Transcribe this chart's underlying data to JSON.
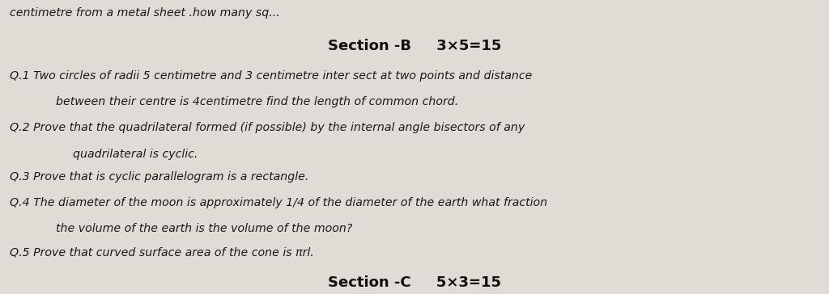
{
  "background_color": "#e0dbd5",
  "top_text": "centimetre from a metal sheet .how many sq...",
  "section_b_title": "Section -B     3×5=15",
  "q1_line1": "Q.1 Two circles of radii 5 centimetre and 3 centimetre inter sect at two points and distance",
  "q1_line2": "      between their centre is 4centimetre find the length of common chord.",
  "q2_line1": "Q.2 Prove that the quadrilateral formed (if possible) by the internal angle bisectors of any",
  "q2_line2": "      quadrilateral is cyclic.",
  "q3_line1": "Q.3 Prove that is cyclic parallelogram is a rectangle.",
  "q4_line1": "Q.4 The diameter of the moon is approximately 1/4 of the diameter of the earth what fraction",
  "q4_line2": "      the volume of the earth is the volume of the moon?",
  "q5_line1": "Q.5 Prove that curved surface area of the cone is πrl.",
  "section_c_title": "Section -C     5×3=15",
  "text_color": "#1a1a1a",
  "title_color": "#111111"
}
